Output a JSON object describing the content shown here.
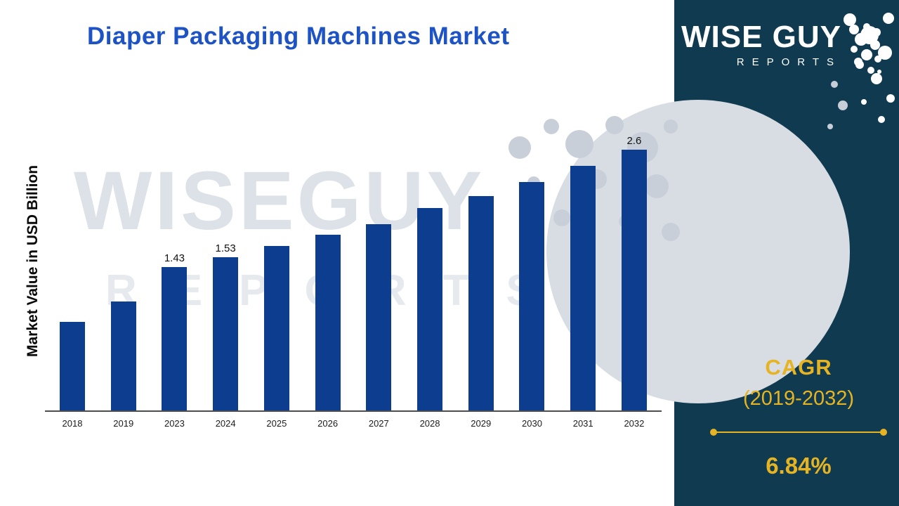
{
  "title": "Diaper Packaging Machines Market",
  "sidebar": {
    "logo_line1": "WISE GUY",
    "logo_line2": "REPORTS",
    "cagr_label": "CAGR",
    "cagr_range": "(2019-2032)",
    "cagr_value": "6.84%"
  },
  "watermark": {
    "line1": "WISEGUY",
    "line2": "REPORTS"
  },
  "colors": {
    "title_blue": "#1d53c4",
    "bar_blue": "#0d3d8f",
    "sidebar_bg": "#0f3a50",
    "accent_gold": "#e6b422",
    "watermark_gray": "#dde1e8"
  },
  "chart_data": {
    "type": "bar",
    "title": "Diaper Packaging Machines Market",
    "xlabel": "",
    "ylabel": "Market Value in USD Billion",
    "ylim": [
      0,
      3
    ],
    "grid": false,
    "legend": "none",
    "categories": [
      "2018",
      "2019",
      "2023",
      "2024",
      "2025",
      "2026",
      "2027",
      "2028",
      "2029",
      "2030",
      "2031",
      "2032"
    ],
    "values": [
      0.88,
      1.09,
      1.43,
      1.53,
      1.64,
      1.75,
      1.86,
      2.02,
      2.14,
      2.28,
      2.44,
      2.6
    ],
    "data_labels": [
      null,
      null,
      "1.43",
      "1.53",
      null,
      null,
      null,
      null,
      null,
      null,
      null,
      "2.6"
    ]
  }
}
